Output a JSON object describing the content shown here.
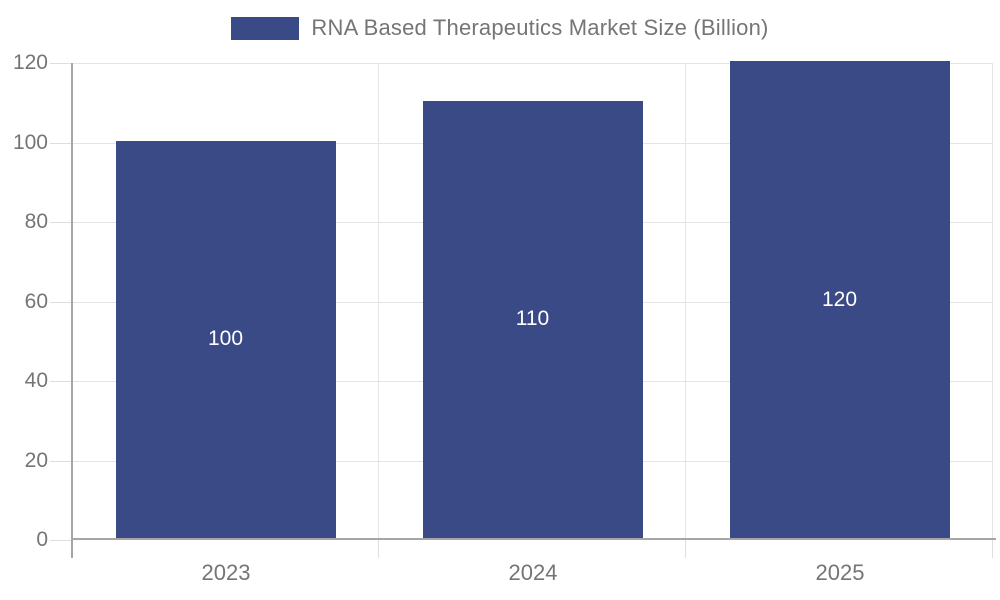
{
  "legend": {
    "label": "RNA Based Therapeutics Market Size (Billion)",
    "position": "top"
  },
  "chart_data": {
    "type": "bar",
    "categories": [
      "2023",
      "2024",
      "2025"
    ],
    "series": [
      {
        "name": "RNA Based Therapeutics Market Size (Billion)",
        "values": [
          100,
          110,
          120
        ]
      }
    ],
    "bar_value_labels": [
      "100",
      "110",
      "120"
    ],
    "title": "",
    "xlabel": "",
    "ylabel": "",
    "ylim": [
      0,
      120
    ],
    "yticks": [
      0,
      20,
      40,
      60,
      80,
      100,
      120
    ],
    "grid": true,
    "legend_position": "top"
  },
  "colors": {
    "bar": "#3A4A86",
    "gridline": "#e4e4e4",
    "axis_line": "#a6a6a6",
    "tick_text": "#757575",
    "bar_label_text": "#ffffff",
    "background": "#ffffff"
  }
}
